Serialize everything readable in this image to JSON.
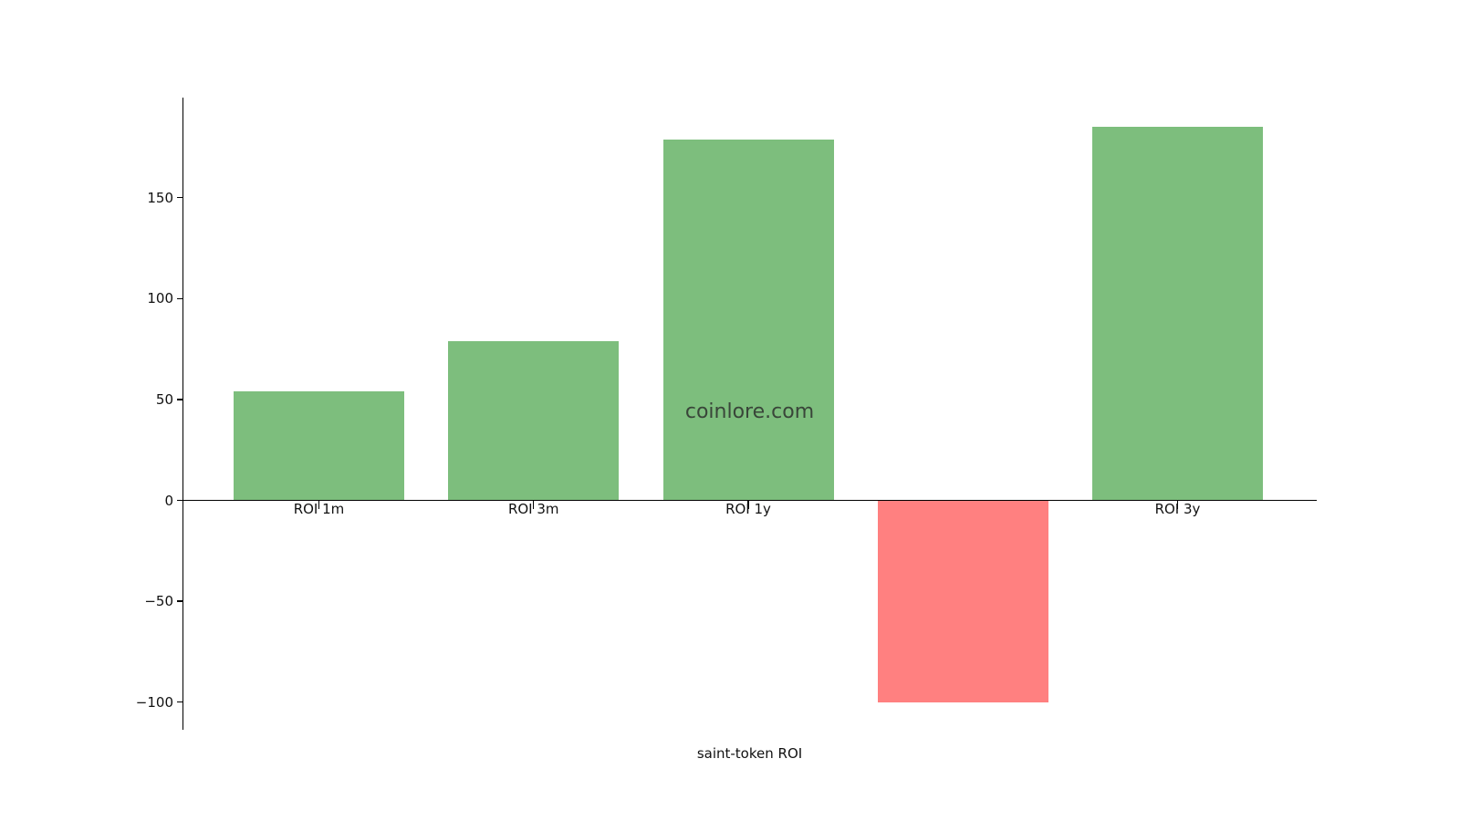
{
  "chart_data": {
    "type": "bar",
    "categories": [
      "ROI 1m",
      "ROI 3m",
      "ROI 1y",
      "",
      "ROI 3y"
    ],
    "values": [
      54,
      79,
      179,
      -100,
      185
    ],
    "title": "saint-token ROI",
    "watermark": "coinlore.com",
    "xlabel": "",
    "ylabel": "",
    "yticks": [
      150,
      100,
      50,
      0,
      -50,
      -100
    ],
    "ylim": [
      -113,
      200
    ],
    "grid": false,
    "legend": null,
    "positive_color": "#7dbe7d",
    "negative_color": "#ff8080",
    "axis_color": "#000000",
    "text_color": "#111111"
  }
}
